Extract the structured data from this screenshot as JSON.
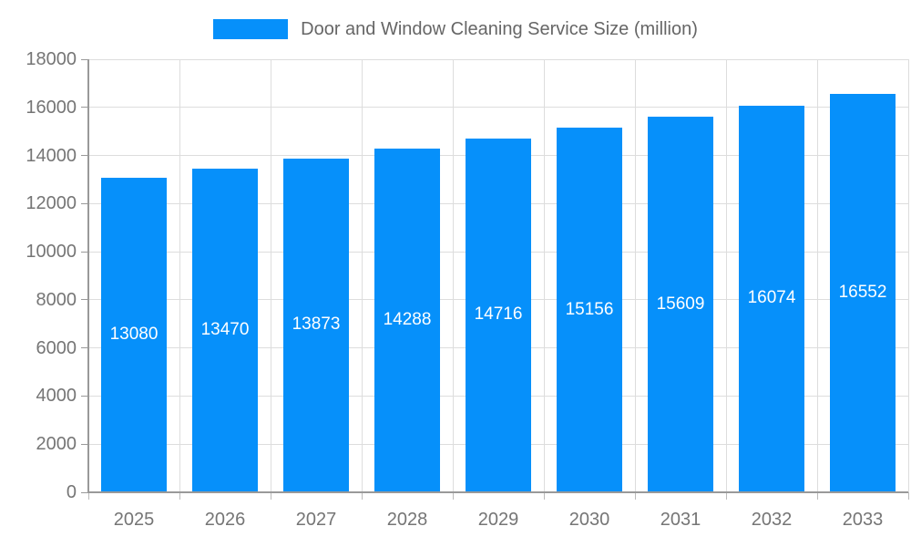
{
  "legend": {
    "label": "Door and Window Cleaning Service Size (million)"
  },
  "colors": {
    "bar": "#0690fa",
    "grid": "#dddddd",
    "axis": "#999999",
    "axis_text": "#757575",
    "legend_text": "#666666",
    "bar_label_text": "#ffffff",
    "background": "#ffffff"
  },
  "chart_data": {
    "type": "bar",
    "title": "Door and Window Cleaning Service Size (million)",
    "categories": [
      "2025",
      "2026",
      "2027",
      "2028",
      "2029",
      "2030",
      "2031",
      "2032",
      "2033"
    ],
    "series": [
      {
        "name": "Door and Window Cleaning Service Size (million)",
        "values": [
          13080,
          13470,
          13873,
          14288,
          14716,
          15156,
          15609,
          16074,
          16552
        ]
      }
    ],
    "xlabel": "",
    "ylabel": "",
    "ylim": [
      0,
      18000
    ],
    "ytick_step": 2000,
    "grid": true,
    "legend_position": "top-center",
    "value_labels": "inside-center"
  }
}
